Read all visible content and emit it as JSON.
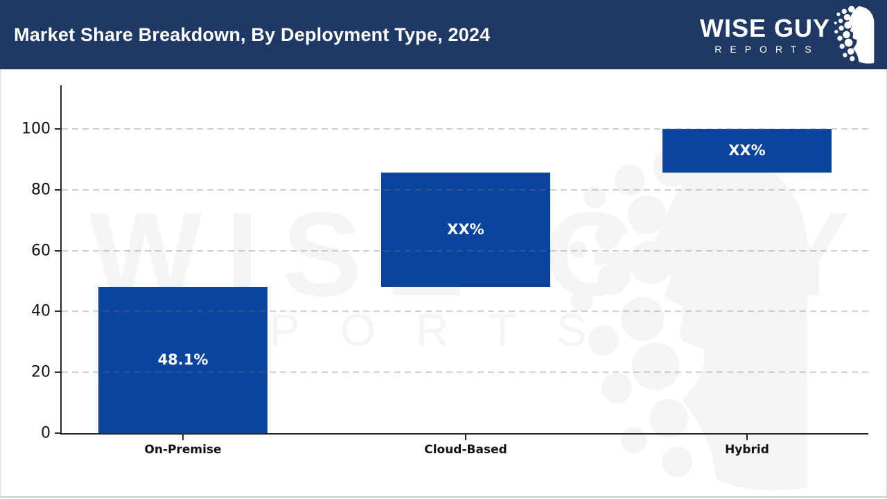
{
  "header": {
    "title": "Market Share Breakdown, By Deployment Type, 2024",
    "logo": {
      "brand_top": "WISE GUY",
      "brand_bottom": "REPORTS"
    }
  },
  "watermark": {
    "line1": "WISE GUY",
    "line2": "REPORTS"
  },
  "chart_data": {
    "type": "bar",
    "subtype": "stacked-waterfall",
    "title": "Market Share Breakdown, By Deployment Type, 2024",
    "categories": [
      "On-Premise",
      "Cloud-Based",
      "Hybrid"
    ],
    "segments": [
      {
        "category": "On-Premise",
        "start": 0,
        "end": 48.1,
        "value": 48.1,
        "label": "48.1%"
      },
      {
        "category": "Cloud-Based",
        "start": 48.1,
        "end": 85.7,
        "value": 37.6,
        "label": "XX%"
      },
      {
        "category": "Hybrid",
        "start": 85.7,
        "end": 100,
        "value": 14.3,
        "label": "XX%"
      }
    ],
    "xlabel": "",
    "ylabel": "",
    "ylim": [
      0,
      100
    ],
    "yticks": [
      0,
      20,
      40,
      60,
      80,
      100
    ],
    "grid": "horizontal-dashed",
    "legend": "none",
    "bar_color": "#0a449e",
    "bar_label_color": "#ffffff",
    "axis_color": "#262626"
  }
}
